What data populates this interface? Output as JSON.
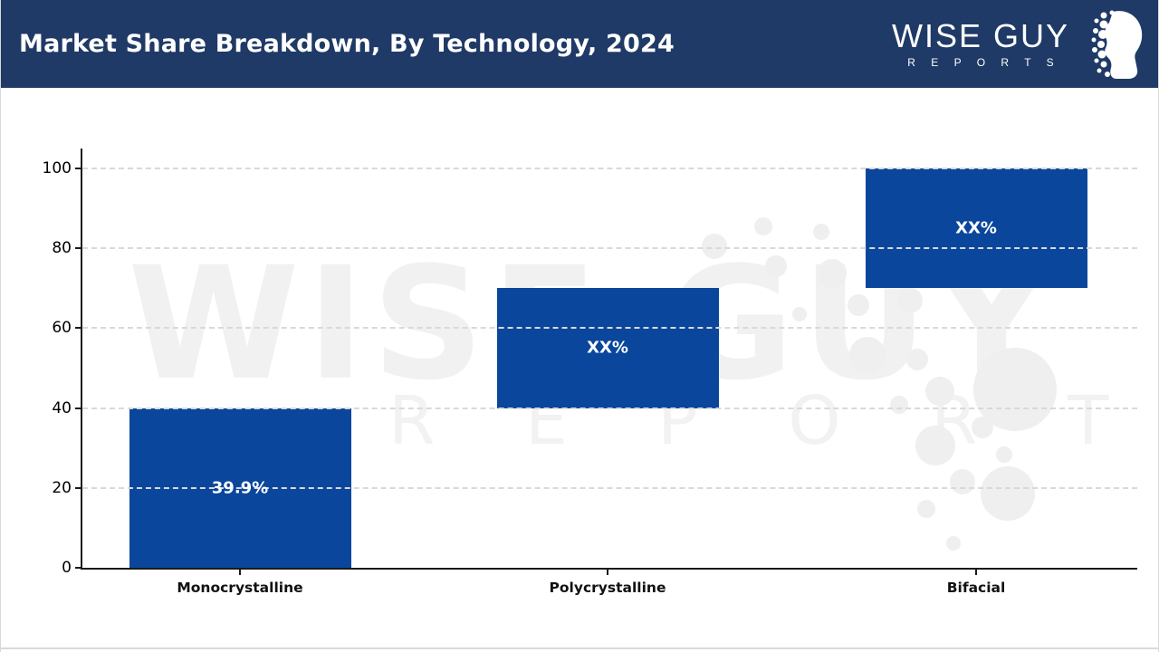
{
  "header": {
    "title": "Market Share Breakdown, By Technology, 2024",
    "logo": {
      "name": "WISE GUY",
      "sub": "R E P O R T S",
      "head_icon": "dotted-face-profile"
    }
  },
  "watermark": {
    "line1": "WISE GUY",
    "line2": "R E P O R T S"
  },
  "chart_data": {
    "type": "bar",
    "variant": "floating-range-bars",
    "title": "Market Share Breakdown, By Technology, 2024",
    "categories": [
      "Monocrystalline",
      "Polycrystalline",
      "Bifacial"
    ],
    "bars": [
      {
        "category": "Monocrystalline",
        "from": 0,
        "to": 39.9,
        "label": "39.9%"
      },
      {
        "category": "Polycrystalline",
        "from": 40,
        "to": 70,
        "label": "XX%"
      },
      {
        "category": "Bifacial",
        "from": 70,
        "to": 100,
        "label": "XX%"
      }
    ],
    "yticks": [
      0,
      20,
      40,
      60,
      80,
      100
    ],
    "ylim": [
      0,
      100
    ],
    "xlabel": "",
    "ylabel": "",
    "legend": "none",
    "grid": "dashed-horizontal",
    "bar_color": "#0a469c",
    "grid_color": "#d9d9d9",
    "header_color": "#1f3a66"
  }
}
